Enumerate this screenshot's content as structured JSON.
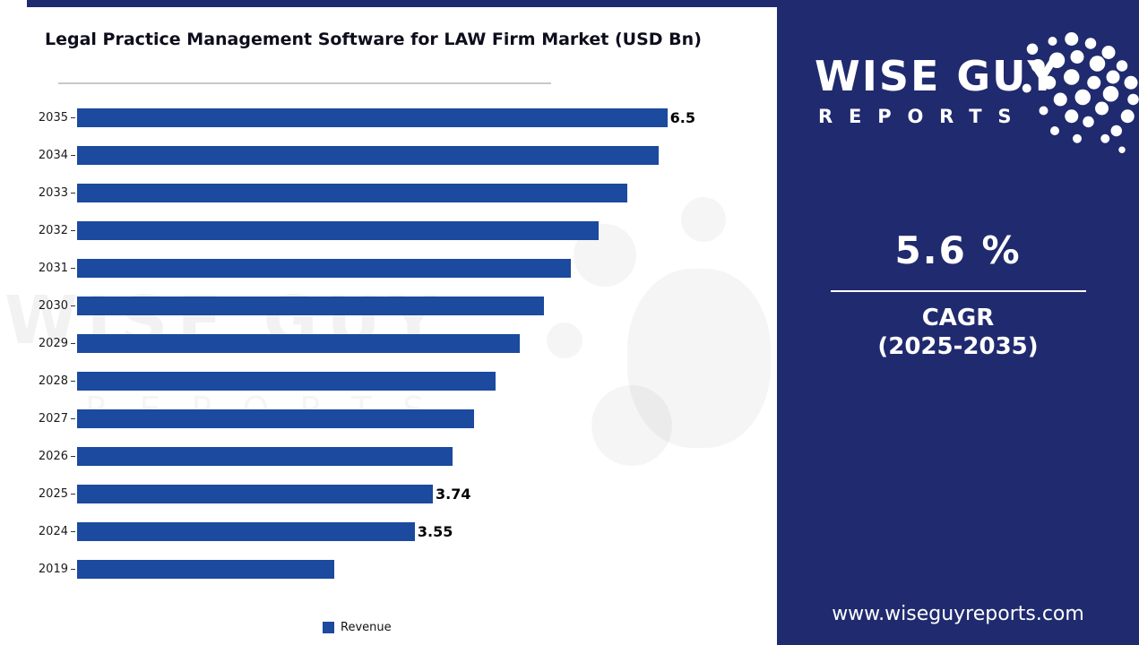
{
  "title": "Legal Practice Management Software for LAW Firm Market (USD Bn)",
  "legend": {
    "label": "Revenue"
  },
  "colors": {
    "bar": "#1b4a9e",
    "panel_bg": "#202a6e",
    "top_strip": "#202a6e",
    "value_label": "#000000"
  },
  "chart_data": {
    "type": "bar",
    "orientation": "horizontal",
    "title": "Legal Practice Management Software for LAW Firm Market (USD Bn)",
    "series_name": "Revenue",
    "categories": [
      "2035",
      "2034",
      "2033",
      "2032",
      "2031",
      "2030",
      "2029",
      "2028",
      "2027",
      "2026",
      "2025",
      "2024",
      "2019"
    ],
    "values": [
      6.5,
      6.11,
      5.78,
      5.48,
      5.19,
      4.91,
      4.65,
      4.4,
      4.17,
      3.95,
      3.74,
      3.55,
      2.7
    ],
    "data_labels": [
      "6.5",
      "",
      "",
      "",
      "",
      "",
      "",
      "",
      "",
      "",
      "3.74",
      "3.55",
      ""
    ],
    "xlim": [
      0,
      6.5
    ],
    "grid": false,
    "legend_position": "bottom"
  },
  "sidebar": {
    "brand_line1": "WISE GUY",
    "brand_line2": "REPORTS",
    "cagr_value": "5.6 %",
    "cagr_label": "CAGR",
    "cagr_period": "(2025-2035)",
    "website": "www.wiseguyreports.com"
  },
  "watermark": {
    "line1": "WISE GUY",
    "line2": "REPORTS"
  }
}
